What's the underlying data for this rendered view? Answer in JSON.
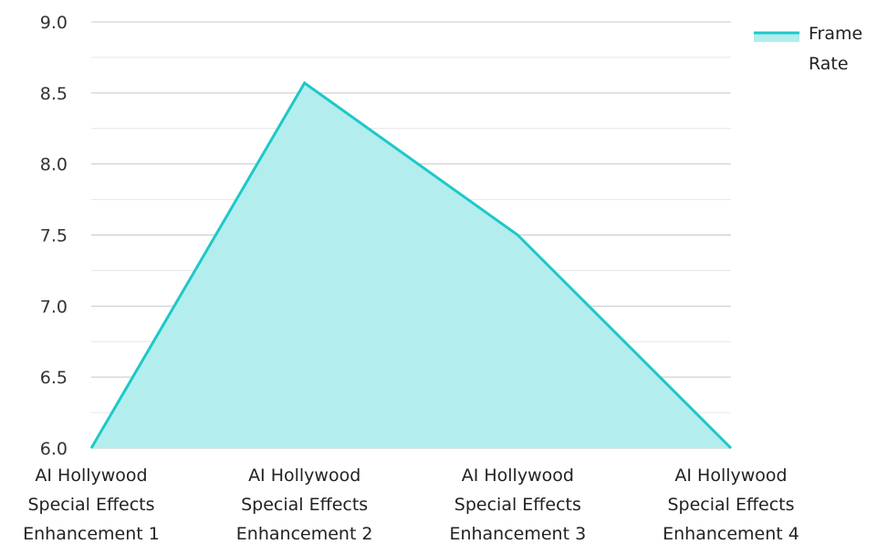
{
  "chart_data": {
    "type": "area",
    "categories": [
      [
        "AI Hollywood",
        "Special Effects",
        "Enhancement 1"
      ],
      [
        "AI Hollywood",
        "Special Effects",
        "Enhancement 2"
      ],
      [
        "AI Hollywood",
        "Special Effects",
        "Enhancement 3"
      ],
      [
        "AI Hollywood",
        "Special Effects",
        "Enhancement 4"
      ]
    ],
    "series": [
      {
        "name": "Frame Rate",
        "values": [
          6.0,
          8.57,
          7.5,
          6.0
        ]
      }
    ],
    "legend": {
      "position": "top-right",
      "lines": [
        "Frame",
        "Rate"
      ]
    },
    "ylim": [
      6.0,
      9.0
    ],
    "yticks": [
      "6.0",
      "6.5",
      "7.0",
      "7.5",
      "8.0",
      "8.5",
      "9.0"
    ],
    "grid": true,
    "colors": {
      "line": "#1ec8c8",
      "fill": "#b3eded",
      "grid_major": "#c8c8c8",
      "grid_minor": "#e6e6e6"
    }
  }
}
